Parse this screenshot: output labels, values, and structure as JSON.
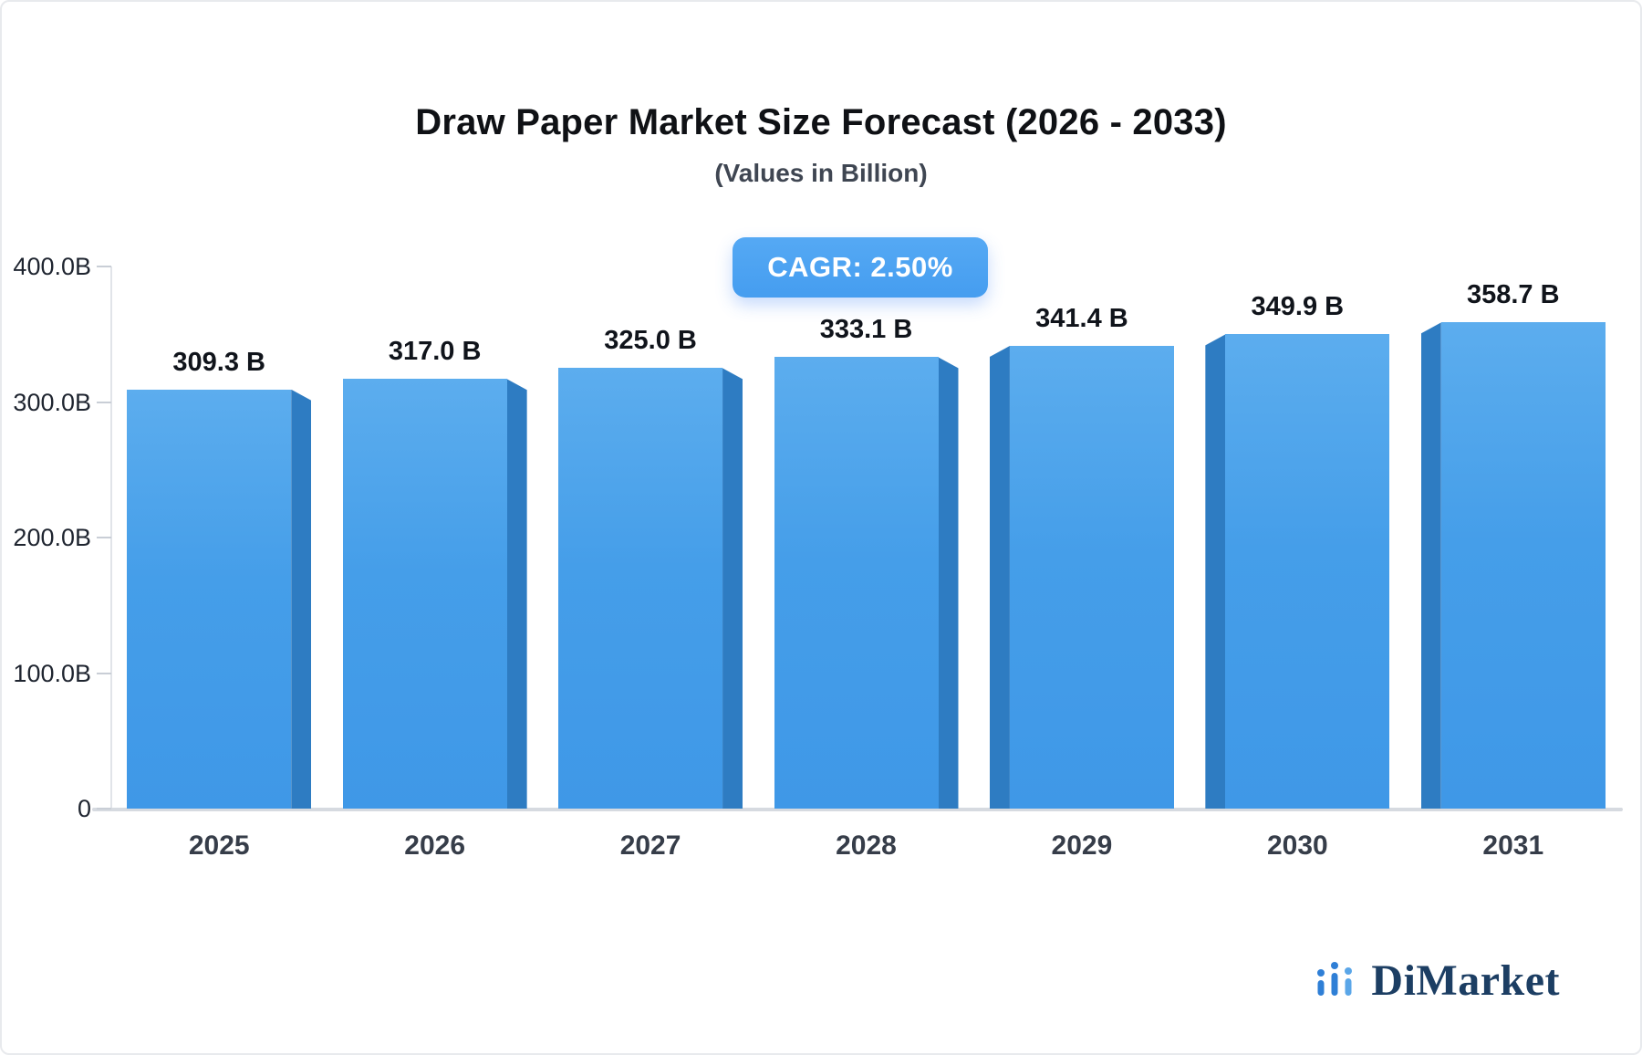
{
  "header": {
    "title": "Draw Paper Market Size Forecast (2026 - 2033)",
    "subtitle": "(Values in Billion)"
  },
  "badge": {
    "label": "CAGR: 2.50%",
    "color": "#4aa1f0"
  },
  "chart_data": {
    "type": "bar",
    "categories": [
      "2025",
      "2026",
      "2027",
      "2028",
      "2029",
      "2030",
      "2031"
    ],
    "values": [
      309.3,
      317.0,
      325.0,
      333.1,
      341.4,
      349.9,
      358.7
    ],
    "value_labels": [
      "309.3 B",
      "317.0 B",
      "325.0 B",
      "333.1 B",
      "341.4 B",
      "349.9 B",
      "358.7 B"
    ],
    "title": "Draw Paper Market Size Forecast (2026 - 2033)",
    "subtitle": "(Values in Billion)",
    "xlabel": "",
    "ylabel": "",
    "ylim": [
      0,
      400
    ],
    "yticks": [
      400,
      300,
      200,
      100,
      0
    ],
    "ytick_labels": [
      "400.0B",
      "300.0B",
      "200.0B",
      "100.0B",
      "0"
    ],
    "grid": false,
    "legend": "none",
    "bar_front_color": "#459ee9",
    "bar_side_color": "#2e7cc2"
  },
  "logo": {
    "text": "DiMarket",
    "icon": "bar-chart-icon",
    "text_color": "#1c3e63",
    "icon_color": "#2f7fd6"
  }
}
